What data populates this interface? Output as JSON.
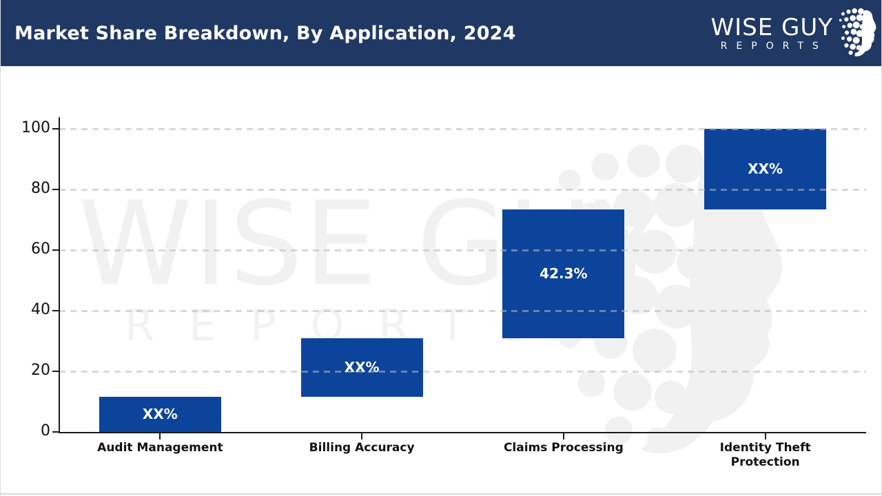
{
  "header": {
    "title": "Market Share Breakdown, By Application, 2024",
    "logo": {
      "brand_line1": "WISE GUY",
      "brand_line2": "REPORTS"
    }
  },
  "watermark": {
    "line1": "WISE GUY",
    "line2": "REPORTS"
  },
  "colors": {
    "header_bg": "#203864",
    "bar": "#0c449c",
    "bar_label": "#ffffff",
    "axis": "#1a1a1a",
    "gridline": "#d8d8d8",
    "watermark": "#f1f1f1"
  },
  "chart_data": {
    "type": "bar",
    "subtype": "waterfall",
    "title": "Market Share Breakdown, By Application, 2024",
    "categories": [
      "Audit Management",
      "Billing Accuracy",
      "Claims Processing",
      "Identity Theft Protection"
    ],
    "segments": [
      {
        "category": "Audit Management",
        "start": 0,
        "end": 11.5,
        "label": "XX%"
      },
      {
        "category": "Billing Accuracy",
        "start": 11.5,
        "end": 31,
        "label": "XX%"
      },
      {
        "category": "Claims Processing",
        "start": 31,
        "end": 73.3,
        "label": "42.3%"
      },
      {
        "category": "Identity Theft Protection",
        "start": 73.3,
        "end": 100,
        "label": "XX%"
      }
    ],
    "values": [
      11.5,
      19.5,
      42.3,
      26.7
    ],
    "yticks": [
      0,
      20,
      40,
      60,
      80,
      100
    ],
    "ylim": [
      0,
      104
    ],
    "xlabel": "",
    "ylabel": "",
    "grid": "horizontal dashed, drawn over bars",
    "legend": "none"
  }
}
